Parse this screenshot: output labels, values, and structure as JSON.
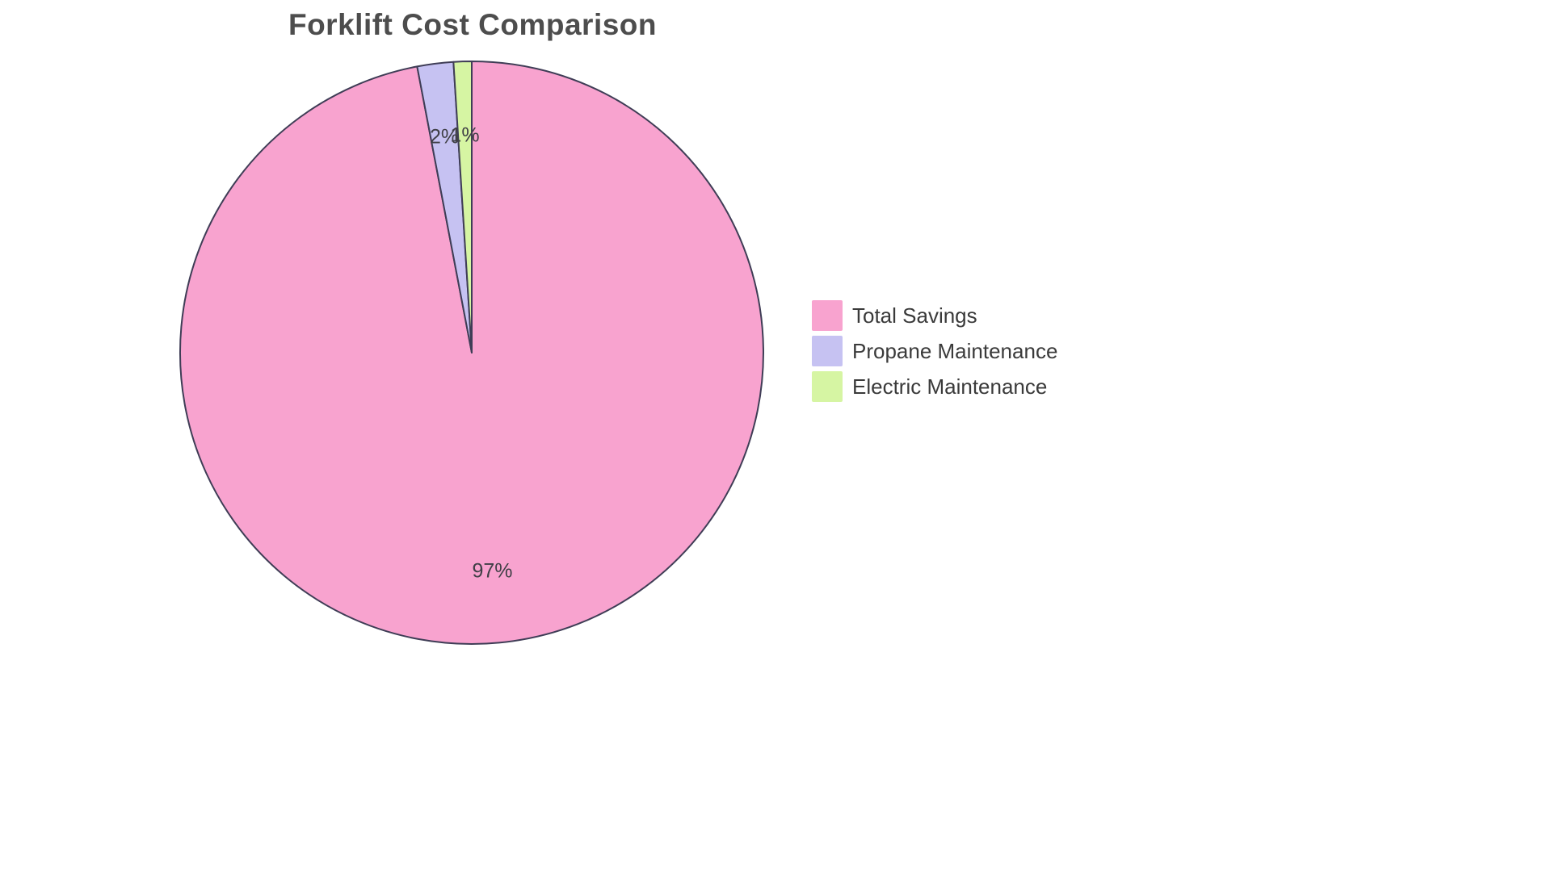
{
  "chart_data": {
    "type": "pie",
    "title": "Forklift Cost Comparison",
    "labels": [
      "Total Savings",
      "Propane Maintenance",
      "Electric Maintenance"
    ],
    "values": [
      97,
      2,
      1
    ],
    "percent_labels": [
      "97%",
      "2%",
      "1%"
    ],
    "colors": [
      "#F8A3CF",
      "#C6C2F2",
      "#D6F5A3"
    ],
    "slice_ids": [
      "total-savings",
      "propane-maintenance",
      "electric-maintenance"
    ],
    "stroke_color": "#3F3D56",
    "label_color": "#3f3f46",
    "title_color": "#4d4d4d",
    "legend_position": "right",
    "start_angle_deg": 0,
    "direction": "clockwise",
    "legend": [
      "Total Savings",
      "Propane Maintenance",
      "Electric Maintenance"
    ]
  }
}
